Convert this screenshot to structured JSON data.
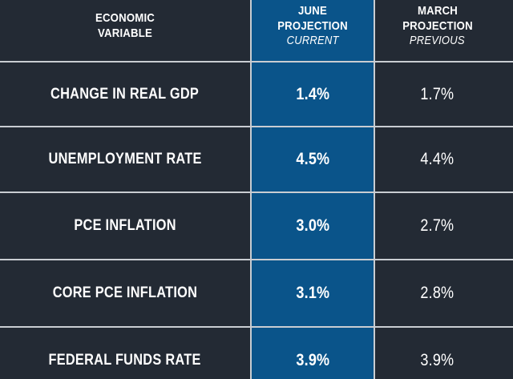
{
  "table": {
    "header": {
      "variable_label": "ECONOMIC VARIABLE",
      "june_label": "JUNE PROJECTION",
      "june_sublabel": "CURRENT",
      "march_label": "MARCH PROJECTION",
      "march_sublabel": "PREVIOUS"
    },
    "rows": [
      {
        "variable": "CHANGE IN REAL GDP",
        "june": "1.4%",
        "march": "1.7%"
      },
      {
        "variable": "UNEMPLOYMENT RATE",
        "june": "4.5%",
        "march": "4.4%"
      },
      {
        "variable": "PCE INFLATION",
        "june": "3.0%",
        "march": "2.7%"
      },
      {
        "variable": "CORE PCE INFLATION",
        "june": "3.1%",
        "march": "2.8%"
      },
      {
        "variable": "FEDERAL FUNDS RATE",
        "june": "3.9%",
        "march": "3.9%"
      }
    ]
  },
  "colors": {
    "background": "#232A34",
    "highlight_column": "#0A548A",
    "grid_line": "#C9CDD2",
    "text": "#FFFFFF"
  },
  "chart_data": {
    "type": "table",
    "title": "Economic projections: June vs March",
    "columns": [
      "ECONOMIC VARIABLE",
      "JUNE PROJECTION (CURRENT)",
      "MARCH PROJECTION (PREVIOUS)"
    ],
    "rows": [
      [
        "CHANGE IN REAL GDP",
        "1.4%",
        "1.7%"
      ],
      [
        "UNEMPLOYMENT RATE",
        "4.5%",
        "4.4%"
      ],
      [
        "PCE INFLATION",
        "3.0%",
        "2.7%"
      ],
      [
        "CORE PCE INFLATION",
        "3.1%",
        "2.8%"
      ],
      [
        "FEDERAL FUNDS RATE",
        "3.9%",
        "3.9%"
      ]
    ]
  }
}
